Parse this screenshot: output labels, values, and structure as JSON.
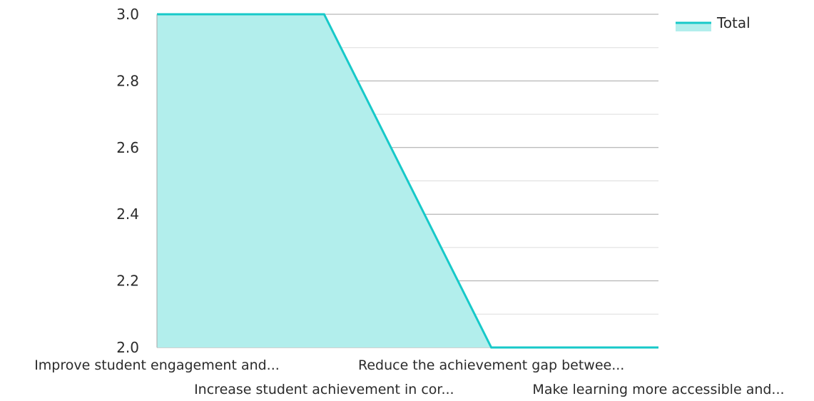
{
  "chart_data": {
    "type": "area",
    "categories": [
      "Improve student engagement and...",
      "Increase student achievement in cor...",
      "Reduce the achievement gap betwee...",
      "Make learning more accessible and..."
    ],
    "series": [
      {
        "name": "Total",
        "values": [
          3.0,
          3.0,
          2.0,
          2.0
        ]
      }
    ],
    "y_ticks": [
      "3.0",
      "2.8",
      "2.6",
      "2.4",
      "2.2",
      "2.0"
    ],
    "ylim": [
      2.0,
      3.0
    ],
    "grid": true,
    "legend": "top-right",
    "colors": {
      "line": "#17c9c9",
      "fill": "#b2eeec",
      "grid_major": "#a6a6a6",
      "grid_minor": "#dddddd",
      "text": "#2b2b2b"
    }
  }
}
